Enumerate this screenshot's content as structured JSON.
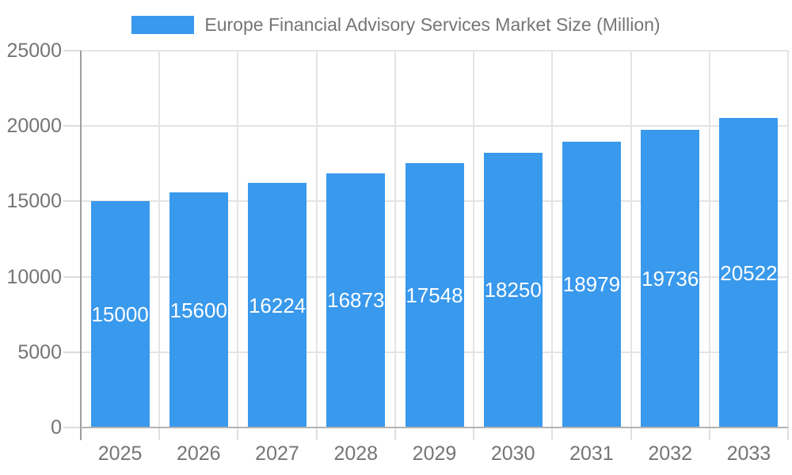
{
  "chart_data": {
    "type": "bar",
    "title": "Europe Financial Advisory Services Market Size (Million)",
    "categories": [
      "2025",
      "2026",
      "2027",
      "2028",
      "2029",
      "2030",
      "2031",
      "2032",
      "2033"
    ],
    "series": [
      {
        "name": "Europe Financial Advisory Services Market Size (Million)",
        "values": [
          15000,
          15600,
          16224,
          16873,
          17548,
          18250,
          18979,
          19736,
          20522
        ]
      }
    ],
    "xlabel": "",
    "ylabel": "",
    "ylim": [
      0,
      25000
    ],
    "yticks": [
      0,
      5000,
      10000,
      15000,
      20000,
      25000
    ],
    "grid": true,
    "legend_position": "top-center",
    "value_label_position": "inside-center"
  },
  "colors": {
    "bar": "#3999EC",
    "grid": "#E4E4E4",
    "y_tick": "#DCDCDC",
    "x_tick": "#E0E0E0",
    "y_axis": "#9E9E9E",
    "x_axis": "#B3B3B3",
    "label_text": "#757575",
    "value_text": "#FFFFFF",
    "background": "#FFFFFF"
  }
}
